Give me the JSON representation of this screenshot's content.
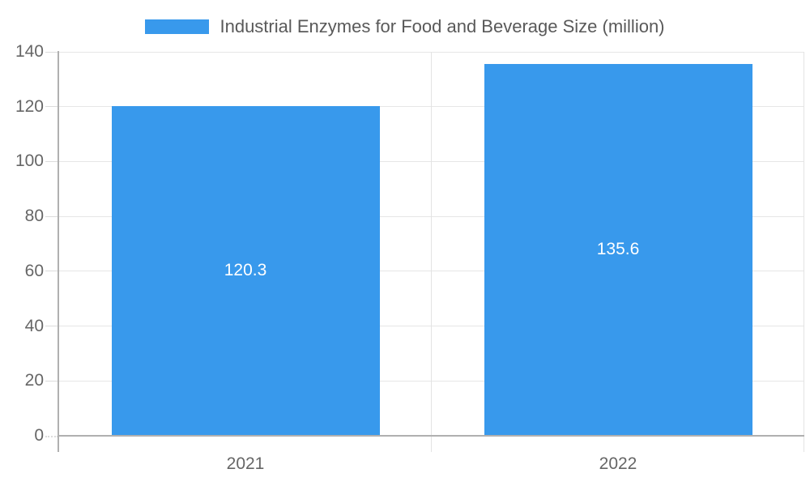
{
  "chart_data": {
    "type": "bar",
    "title": "Industrial Enzymes for Food and Beverage Size (million)",
    "categories": [
      "2021",
      "2022"
    ],
    "values": [
      120.3,
      135.6
    ],
    "value_labels": [
      "120.3",
      "135.6"
    ],
    "series": [
      {
        "name": "Industrial Enzymes for Food and Beverage Size (million)",
        "values": [
          120.3,
          135.6
        ]
      }
    ],
    "xlabel": "",
    "ylabel": "",
    "ylim": [
      0,
      140
    ],
    "yticks": [
      0,
      20,
      40,
      60,
      80,
      100,
      120,
      140
    ],
    "grid": true,
    "legend_position": "top",
    "colors": {
      "bar": "#3899EC",
      "value_label": "#FFFFFF",
      "legend_text": "#595959",
      "axis_text": "#666666",
      "gridline": "#E6E6E6",
      "tick": "#DCDCDC",
      "boundary_line": "#E3E3E3",
      "axis_line": "#B0B0B0",
      "background": "#FFFFFF"
    }
  }
}
